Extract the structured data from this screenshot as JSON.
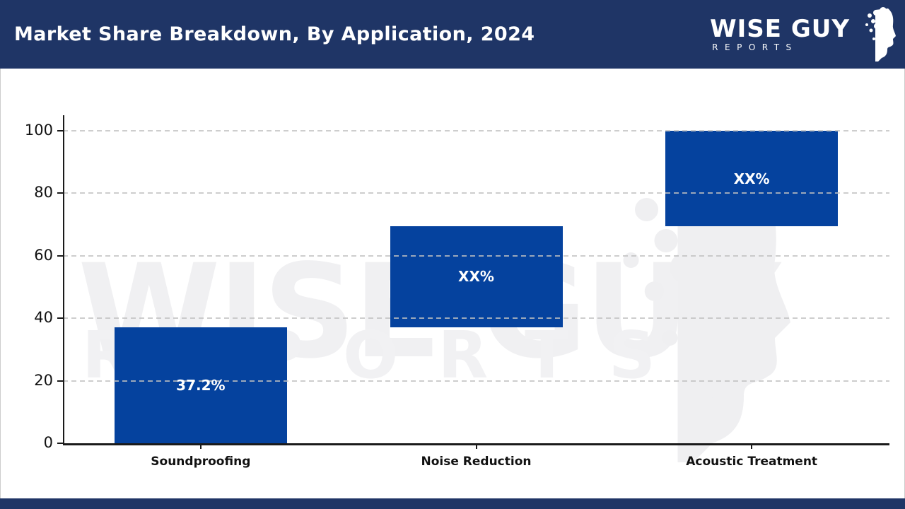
{
  "header": {
    "title": "Market Share Breakdown, By Application, 2024",
    "logo": {
      "line1": "WISE GUY",
      "line2": "REPORTS"
    }
  },
  "watermark": {
    "line1": "WISE GUY",
    "line2": "REPORTS"
  },
  "footer": {},
  "chart_data": {
    "type": "bar",
    "subtype": "waterfall",
    "title": "Market Share Breakdown, By Application, 2024",
    "categories": [
      "Soundproofing",
      "Noise Reduction",
      "Acoustic Treatment"
    ],
    "segments": [
      {
        "category": "Soundproofing",
        "start": 0,
        "end": 37.2,
        "label": "37.2%"
      },
      {
        "category": "Noise Reduction",
        "start": 37.2,
        "end": 69.4,
        "label": "XX%"
      },
      {
        "category": "Acoustic Treatment",
        "start": 69.4,
        "end": 100,
        "label": "XX%"
      }
    ],
    "xlabel": "",
    "ylabel": "",
    "ylim": [
      0,
      100
    ],
    "yticks": [
      0,
      20,
      40,
      60,
      80,
      100
    ],
    "grid": {
      "axis": "y",
      "style": "dashed"
    },
    "legend": "none",
    "colors": {
      "bar": "#05429e",
      "bar_label": "#ffffff",
      "grid": "#d9d9d9",
      "axis": "#1a1a1a",
      "header_bg": "#1f3566",
      "watermark": "#f0f0f2"
    }
  }
}
